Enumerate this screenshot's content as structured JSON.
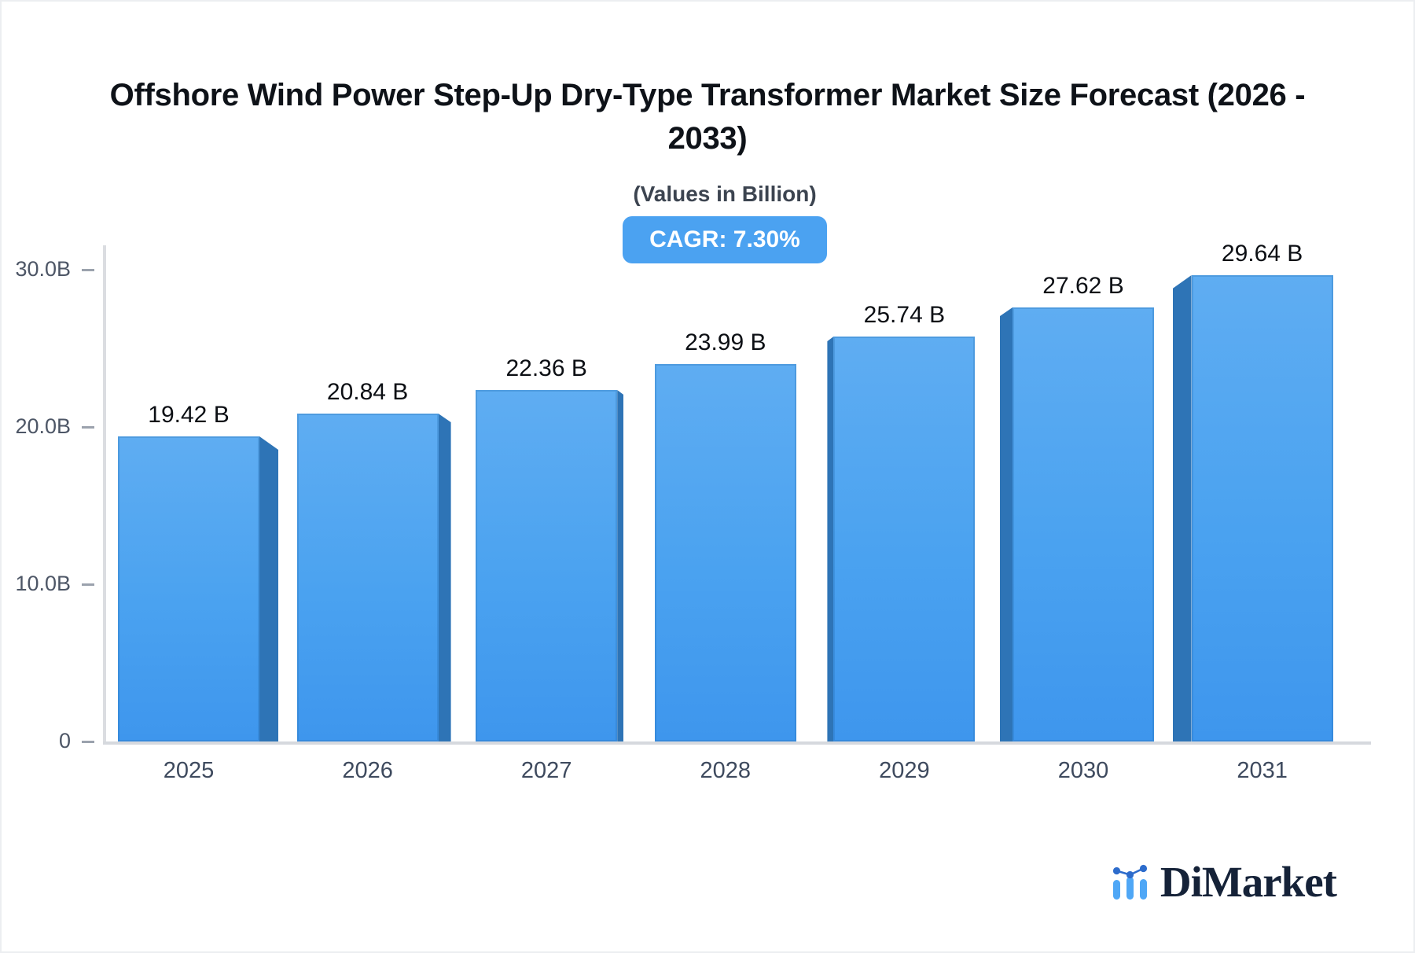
{
  "header": {
    "title_lines": [
      "Offshore Wind Power Step-Up Dry-Type Transformer Market Size Forecast (2026 -",
      "2033)"
    ],
    "subtitle": "(Values in Billion)",
    "cagr_badge": "CAGR: 7.30%"
  },
  "chart_data": {
    "type": "bar",
    "title": "Offshore Wind Power Step-Up Dry-Type Transformer Market Size Forecast (2026 - 2033)",
    "subtitle": "(Values in Billion)",
    "cagr_percent": 7.3,
    "categories": [
      "2025",
      "2026",
      "2027",
      "2028",
      "2029",
      "2030",
      "2031"
    ],
    "values": [
      19.42,
      20.84,
      22.36,
      23.99,
      25.74,
      27.62,
      29.64
    ],
    "value_labels": [
      "19.42 B",
      "20.84 B",
      "22.36 B",
      "23.99 B",
      "25.74 B",
      "27.62 B",
      "29.64 B"
    ],
    "xlabel": "",
    "ylabel": "",
    "ylim": [
      0,
      30
    ],
    "yticks": [
      {
        "value": 0,
        "label": "0"
      },
      {
        "value": 10,
        "label": "10.0B"
      },
      {
        "value": 20,
        "label": "20.0B"
      },
      {
        "value": 30,
        "label": "30.0B"
      }
    ],
    "grid": false,
    "legend": "none",
    "bar_style": "3d-beveled"
  },
  "colors": {
    "bar_face_top": "#5FADF2",
    "bar_face_mid": "#4AA2F0",
    "bar_face_bottom": "#3E96ED",
    "bar_side": "#2E74B6",
    "badge_bg": "#4BA2F1",
    "badge_text": "#FFFFFF",
    "axis": "#DBDDE1",
    "tick": "#9BA2AD",
    "logo_bar_blue": "#4FA7F6",
    "logo_dot_blue": "#2D6CCC",
    "logo_text_navy": "#152238"
  },
  "logo": {
    "brand": "DiMarket",
    "icon": "bar-chart-trend-icon"
  }
}
